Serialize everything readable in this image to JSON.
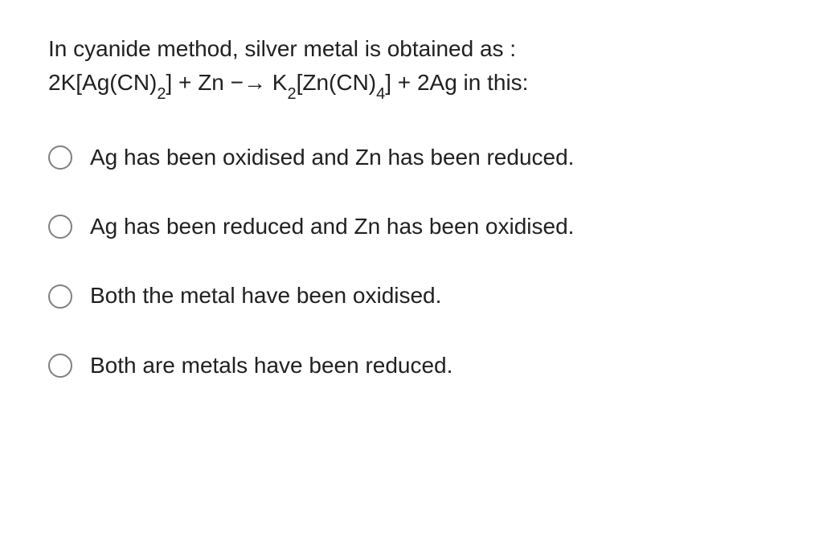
{
  "question": {
    "line1_part1": "In cyanide method, silver metal is obtained as :",
    "equation_prefix": "2K[Ag(CN)",
    "equation_sub1": "2",
    "equation_mid1": "] + Zn −→ K",
    "equation_sub2": "2",
    "equation_mid2": "[Zn(CN)",
    "equation_sub3": "4",
    "equation_suffix": "] + 2Ag in this:"
  },
  "options": [
    {
      "text": "Ag has been oxidised and Zn has been reduced."
    },
    {
      "text": "Ag has been reduced and Zn has been oxidised."
    },
    {
      "text": "Both the metal have been oxidised."
    },
    {
      "text": "Both are metals have been reduced."
    }
  ],
  "style": {
    "text_color": "#212121",
    "radio_border_color": "#808080",
    "background_color": "#ffffff",
    "question_fontsize": 28,
    "option_fontsize": 28,
    "sub_fontsize": 20
  }
}
